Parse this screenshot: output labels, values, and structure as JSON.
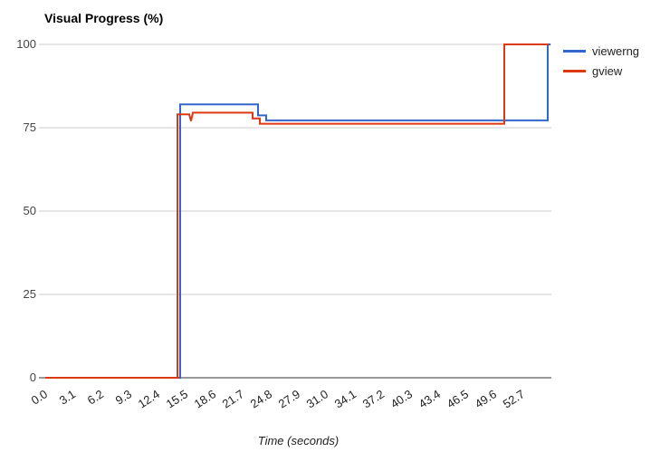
{
  "chart_data": {
    "type": "line",
    "title": "Visual Progress (%)",
    "xlabel": "Time (seconds)",
    "ylabel": "",
    "xlim": [
      0,
      55.9
    ],
    "ylim": [
      0,
      100
    ],
    "yticks": [
      0,
      25,
      50,
      75,
      100
    ],
    "xtick_labels": [
      "0.0",
      "3.1",
      "6.2",
      "9.3",
      "12.4",
      "15.5",
      "18.6",
      "21.7",
      "24.8",
      "27.9",
      "31.0",
      "34.1",
      "37.2",
      "40.3",
      "43.4",
      "46.5",
      "49.6",
      "52.7"
    ],
    "grid": "horizontal gridlines only",
    "legend_position": "right",
    "gridline_color": "#CCCCCC",
    "baseline_color": "#333333",
    "series": [
      {
        "name": "viewerng",
        "color": "#3366CC",
        "points": [
          [
            0,
            0
          ],
          [
            14.9,
            0
          ],
          [
            14.9,
            82
          ],
          [
            23.5,
            82
          ],
          [
            23.5,
            78.7
          ],
          [
            24.4,
            78.7
          ],
          [
            24.4,
            77.2
          ],
          [
            55.5,
            77.2
          ],
          [
            55.5,
            100
          ],
          [
            55.8,
            100
          ]
        ]
      },
      {
        "name": "gview",
        "color": "#DC3912",
        "points": [
          [
            0,
            0
          ],
          [
            14.6,
            0
          ],
          [
            14.6,
            79
          ],
          [
            15.9,
            79
          ],
          [
            16.1,
            77
          ],
          [
            16.3,
            79.5
          ],
          [
            22.9,
            79.5
          ],
          [
            22.9,
            77.8
          ],
          [
            23.7,
            77.8
          ],
          [
            23.7,
            76.2
          ],
          [
            50.7,
            76.2
          ],
          [
            50.7,
            100
          ],
          [
            55.5,
            100
          ]
        ]
      }
    ]
  }
}
